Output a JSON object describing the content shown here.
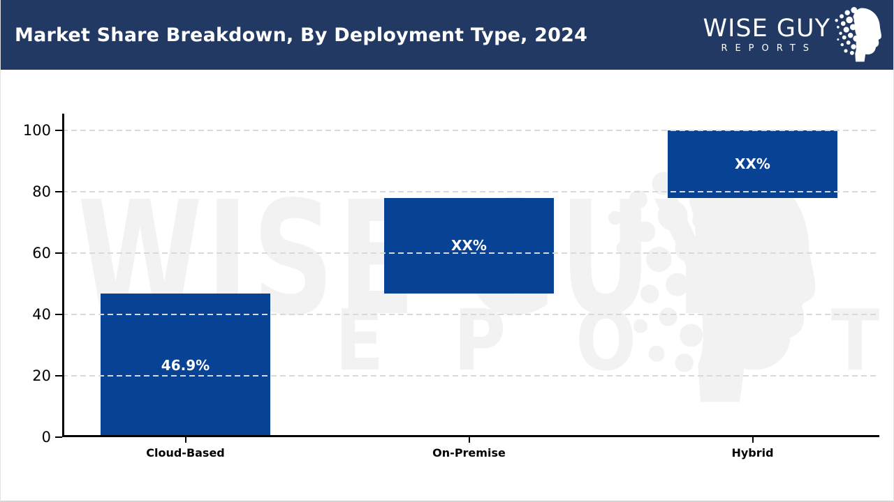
{
  "header": {
    "title": "Market Share Breakdown, By Deployment Type, 2024",
    "logo_line1": "WISE GUY",
    "logo_line2": "REPORTS"
  },
  "watermark": {
    "line1": "WISE GUY",
    "line2": "R E P O R T S"
  },
  "colors": {
    "header_bg": "#213963",
    "bar": "#084294",
    "grid": "#d9d9d9",
    "axis": "#000000",
    "bar_label_text": "#ffffff",
    "watermark": "#f2f2f2"
  },
  "chart_data": {
    "type": "bar",
    "subtype": "stacked-waterfall",
    "title": "Market Share Breakdown, By Deployment Type, 2024",
    "categories": [
      "Cloud-Based",
      "On-Premise",
      "Hybrid"
    ],
    "segments": [
      {
        "category": "Cloud-Based",
        "start": 0,
        "end": 46.9,
        "label": "46.9%"
      },
      {
        "category": "On-Premise",
        "start": 46.9,
        "end": 78.0,
        "label": "XX%"
      },
      {
        "category": "Hybrid",
        "start": 78.0,
        "end": 100.0,
        "label": "XX%"
      }
    ],
    "yticks": [
      0,
      20,
      40,
      60,
      80,
      100
    ],
    "ylim": [
      0,
      100
    ],
    "xlabel": "",
    "ylabel": "",
    "grid": "horizontal-dashed",
    "legend": "none",
    "bar_color": "#084294"
  }
}
